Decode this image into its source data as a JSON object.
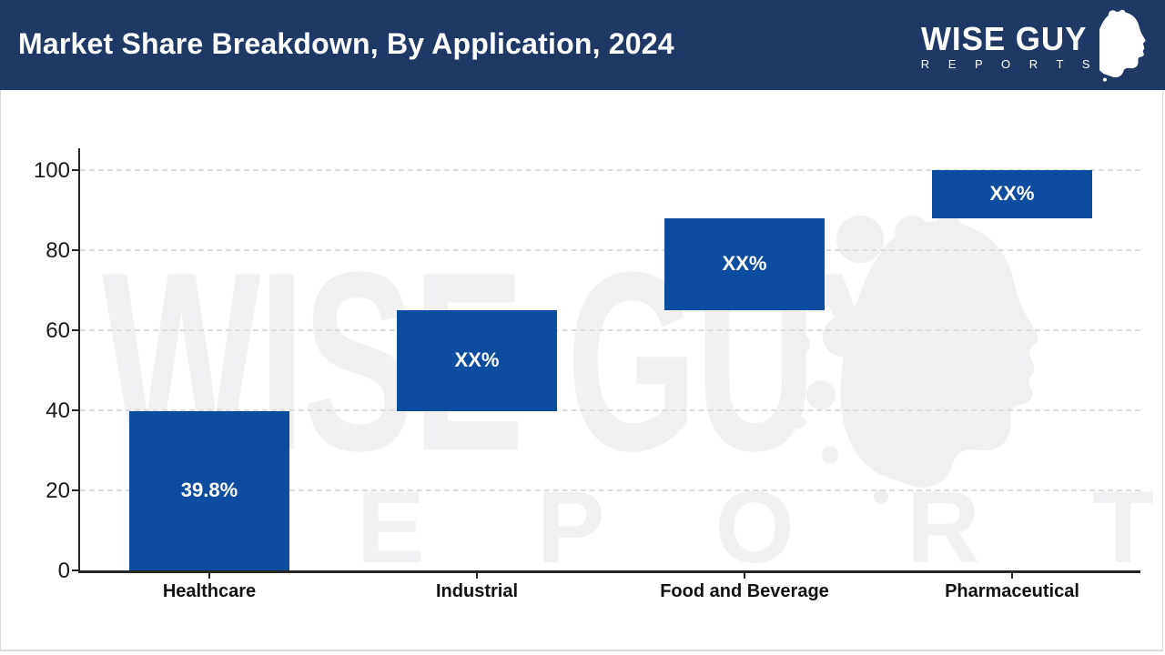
{
  "header": {
    "title": "Market Share Breakdown, By Application, 2024",
    "logo_line1": "WISE GUY",
    "logo_line2": "R E P O R T S"
  },
  "watermark": {
    "line1": "WISE GUY",
    "line2": "R E P O R T S"
  },
  "colors": {
    "header_bg": "#1f3865",
    "bar": "#0c4da0",
    "axis": "#262626",
    "grid": "#dcdcdc",
    "bar_label": "#ffffff",
    "watermark": "#f1f1f3"
  },
  "chart_data": {
    "type": "bar",
    "subtype": "waterfall-stacked",
    "title": "Market Share Breakdown, By Application, 2024",
    "categories": [
      "Healthcare",
      "Industrial",
      "Food and Beverage",
      "Pharmaceutical"
    ],
    "segments": [
      {
        "category": "Healthcare",
        "start": 0,
        "end": 39.8,
        "value_label": "39.8%"
      },
      {
        "category": "Industrial",
        "start": 39.8,
        "end": 65,
        "value_label": "XX%"
      },
      {
        "category": "Food and Beverage",
        "start": 65,
        "end": 88,
        "value_label": "XX%"
      },
      {
        "category": "Pharmaceutical",
        "start": 88,
        "end": 100,
        "value_label": "XX%"
      }
    ],
    "xlabel": "",
    "ylabel": "",
    "ylim": [
      0,
      100
    ],
    "yticks": [
      0,
      20,
      40,
      60,
      80,
      100
    ],
    "grid": "horizontal-dashed",
    "legend": "none"
  }
}
